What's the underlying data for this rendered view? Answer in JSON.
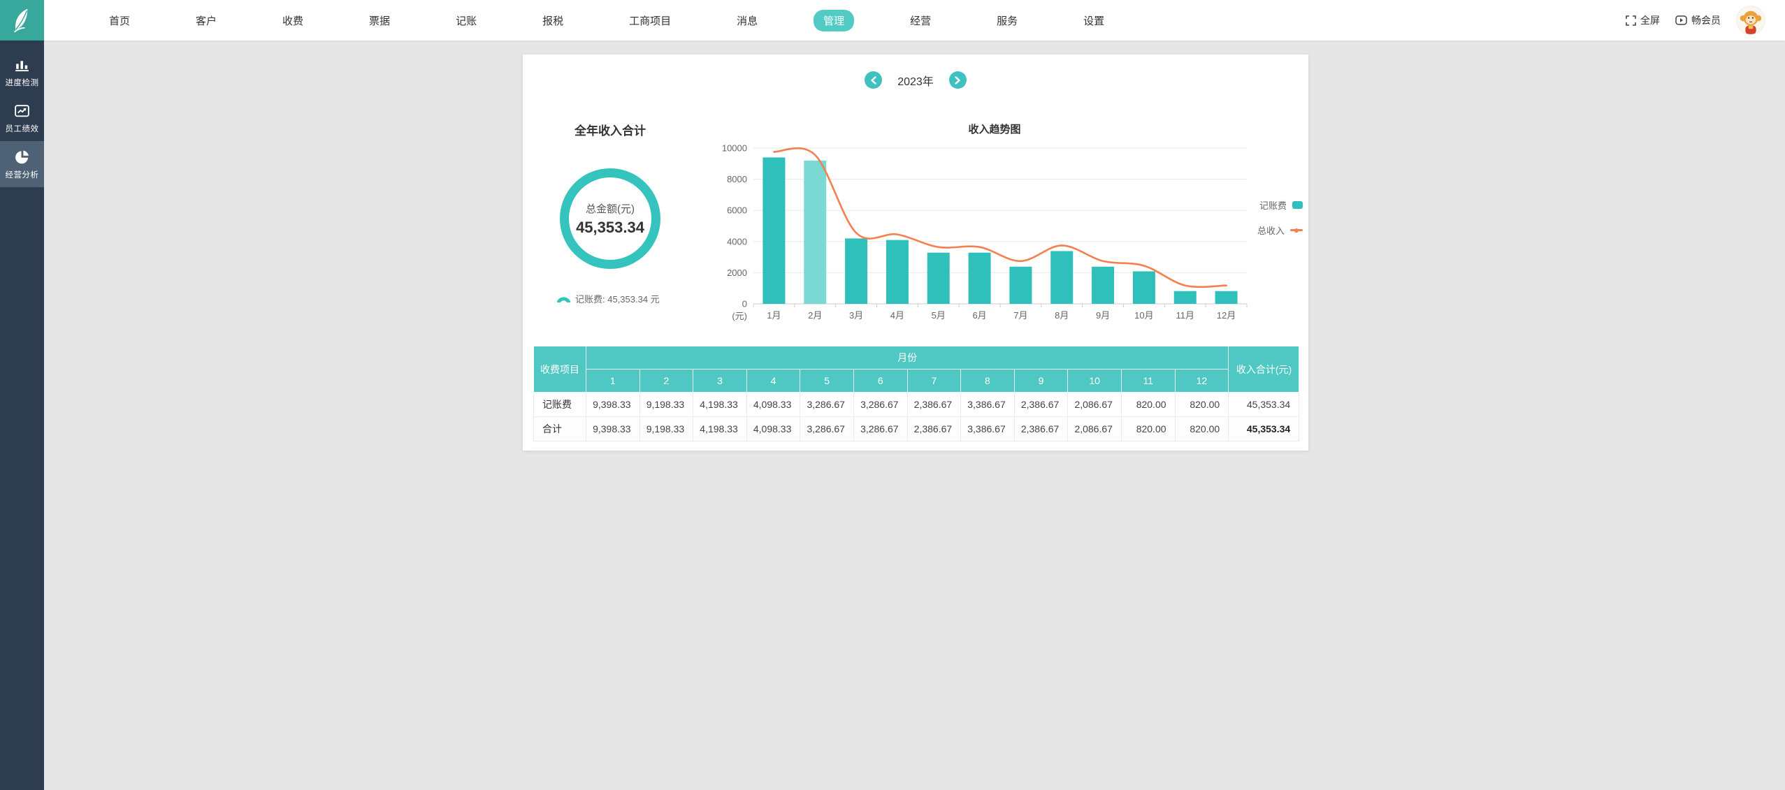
{
  "nav": {
    "items": [
      "首页",
      "客户",
      "收费",
      "票据",
      "记账",
      "报税",
      "工商项目",
      "消息",
      "管理",
      "经营",
      "服务",
      "设置"
    ],
    "active_item": "管理",
    "fullscreen_label": "全屏",
    "member_label": "畅会员"
  },
  "sidebar": {
    "items": [
      {
        "label": "进度检测",
        "icon": "bar-chart-icon",
        "active": false
      },
      {
        "label": "员工绩效",
        "icon": "trend-chart-icon",
        "active": false
      },
      {
        "label": "经营分析",
        "icon": "pie-chart-icon",
        "active": true
      }
    ]
  },
  "year_selector": {
    "year": "2023年"
  },
  "summary": {
    "title": "全年收入合计",
    "donut_label": "总金额(元)",
    "donut_value": "45,353.34",
    "legend": "记账费:  45,353.34 元"
  },
  "chart_data": {
    "type": "bar",
    "title": "收入趋势图",
    "categories": [
      "1月",
      "2月",
      "3月",
      "4月",
      "5月",
      "6月",
      "7月",
      "8月",
      "9月",
      "10月",
      "11月",
      "12月"
    ],
    "series": [
      {
        "name": "记账费",
        "type": "bar",
        "color": "#2fc0bb",
        "highlight_color": "#7bd9d3",
        "highlight_index": 1,
        "values": [
          9398.33,
          9198.33,
          4198.33,
          4098.33,
          3286.67,
          3286.67,
          2386.67,
          3386.67,
          2386.67,
          2086.67,
          820.0,
          820.0
        ]
      },
      {
        "name": "总收入",
        "type": "line",
        "color": "#f57f4e",
        "values": [
          9398.33,
          9198.33,
          4198.33,
          4098.33,
          3286.67,
          3286.67,
          2386.67,
          3386.67,
          2386.67,
          2086.67,
          820.0,
          820.0
        ]
      }
    ],
    "ylim": [
      0,
      10000
    ],
    "ytick_interval": 2000,
    "unit_label": "(元)",
    "grid": true,
    "legend_position": "right"
  },
  "table": {
    "corner_header": "收费项目",
    "group_header": "月份",
    "month_headers": [
      "1",
      "2",
      "3",
      "4",
      "5",
      "6",
      "7",
      "8",
      "9",
      "10",
      "11",
      "12"
    ],
    "total_header": "收入合计(元)",
    "rows": [
      {
        "label": "记账费",
        "values": [
          "9,398.33",
          "9,198.33",
          "4,198.33",
          "4,098.33",
          "3,286.67",
          "3,286.67",
          "2,386.67",
          "3,386.67",
          "2,386.67",
          "2,086.67",
          "820.00",
          "820.00"
        ],
        "total": "45,353.34",
        "bold_total": false
      },
      {
        "label": "合计",
        "values": [
          "9,398.33",
          "9,198.33",
          "4,198.33",
          "4,098.33",
          "3,286.67",
          "3,286.67",
          "2,386.67",
          "3,386.67",
          "2,386.67",
          "2,086.67",
          "820.00",
          "820.00"
        ],
        "total": "45,353.34",
        "bold_total": true
      }
    ]
  },
  "colors": {
    "brand_teal": "#35c3bd",
    "logo_bg": "#38a89d",
    "nav_active_bg": "#52cbc4",
    "sidebar_bg": "#2e3c50",
    "sidebar_active_bg": "#4e6175",
    "table_header_bg": "#4fc8c4",
    "bar_color": "#2fc0bb",
    "bar_highlight": "#7bd9d3",
    "line_color": "#f57f4e",
    "page_bg": "#e6e6e6"
  }
}
